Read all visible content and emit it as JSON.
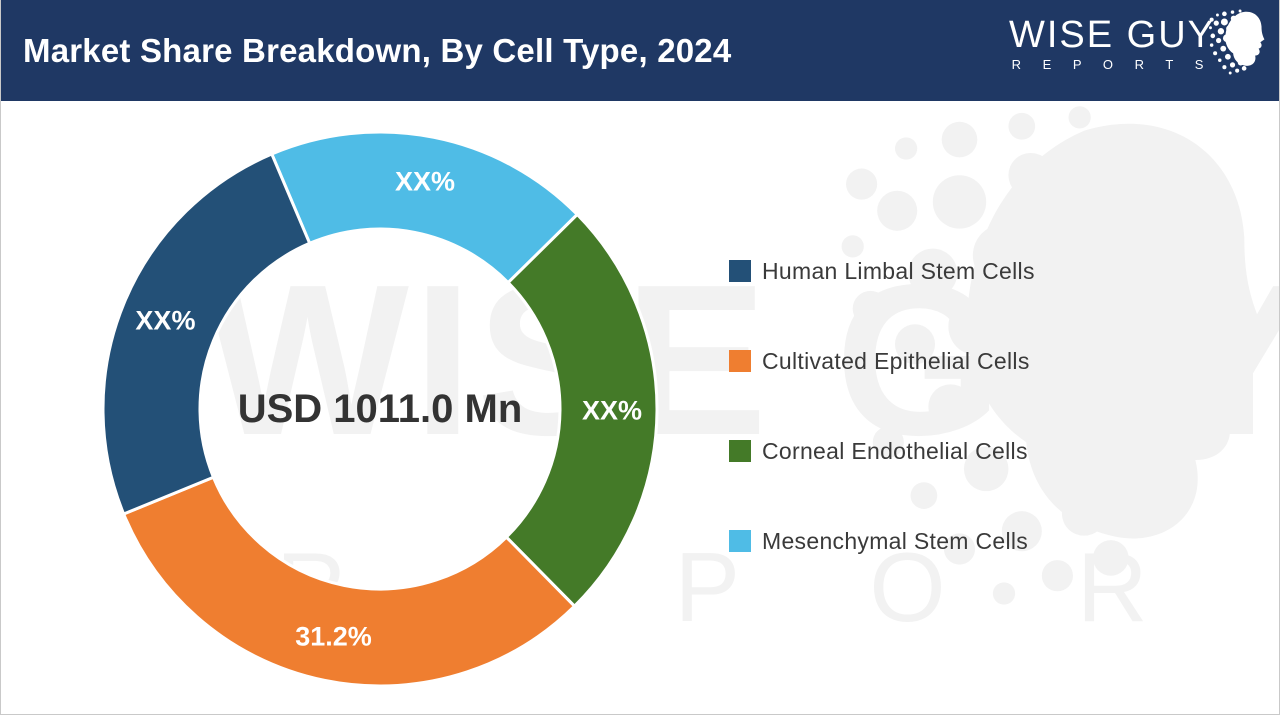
{
  "header": {
    "title": "Market Share Breakdown, By Cell Type, 2024",
    "logo_primary": "WISE GUY",
    "logo_secondary": "R E P O R T S"
  },
  "watermark": {
    "line1": "WISE GUY",
    "line2": "R E P O R T S"
  },
  "chart_data": {
    "type": "pie",
    "subtype": "donut",
    "title": "Market Share Breakdown, By Cell Type, 2024",
    "center_label": "USD 1011.0 Mn",
    "start_angle_deg": -23,
    "inner_radius_ratio": 0.65,
    "legend_position": "right",
    "segments": [
      {
        "label": "Mesenchymal Stem Cells",
        "value_pct": 19.0,
        "display": "XX%",
        "color": "#4FBCE6"
      },
      {
        "label": "Corneal Endothelial Cells",
        "value_pct": 25.0,
        "display": "XX%",
        "color": "#447A28"
      },
      {
        "label": "Cultivated Epithelial Cells",
        "value_pct": 31.2,
        "display": "31.2%",
        "color": "#EF7E30"
      },
      {
        "label": "Human Limbal Stem Cells",
        "value_pct": 24.8,
        "display": "XX%",
        "color": "#235077"
      }
    ],
    "legend": [
      {
        "label": "Human Limbal Stem Cells",
        "color": "#235077"
      },
      {
        "label": "Cultivated Epithelial Cells",
        "color": "#EF7E30"
      },
      {
        "label": "Corneal Endothelial Cells",
        "color": "#447A28"
      },
      {
        "label": "Mesenchymal Stem Cells",
        "color": "#4FBCE6"
      }
    ]
  },
  "colors": {
    "header_bg": "#1F3864",
    "page_border": "#C9C9C9",
    "center_text": "#333333",
    "legend_text": "#3A3A3A",
    "slice_label_text": "#FFFFFF",
    "watermark": "#F2F2F2"
  }
}
